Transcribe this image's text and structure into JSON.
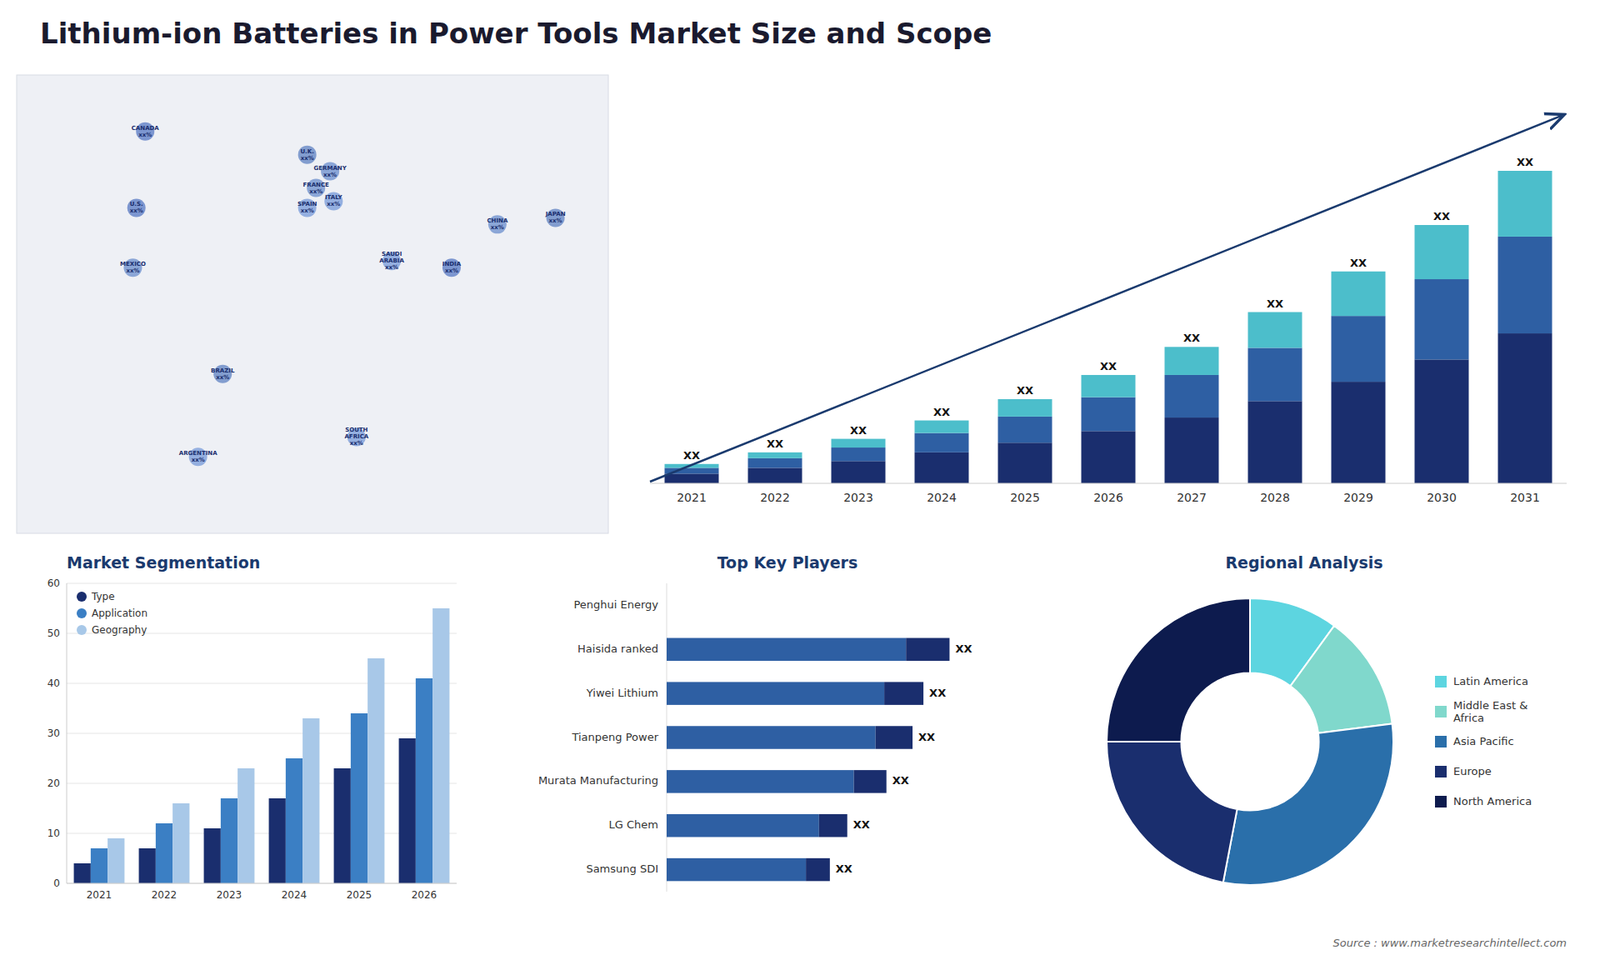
{
  "title": "Lithium-ion Batteries in Power Tools Market Size and Scope",
  "source": "Source : www.marketresearchintellect.com",
  "chart_data": [
    {
      "type": "map",
      "xlim": [
        -168,
        168
      ],
      "ylim": [
        -58,
        80
      ],
      "tick_labels": false,
      "labels": [
        "CANADA\nxx%",
        "U.S.\nxx%",
        "MEXICO\nxx%",
        "BRAZIL\nxx%",
        "ARGENTINA\nxx%",
        "U.K.\nxx%",
        "FRANCE\nxx%",
        "SPAIN\nxx%",
        "GERMANY\nxx%",
        "ITALY\nxx%",
        "SAUDI\nARABIA\nxx%",
        "SOUTH\nAFRICA\nxx%",
        "CHINA\nxx%",
        "JAPAN\nxx%",
        "INDIA\nxx%"
      ],
      "x": [
        -95,
        -100,
        -102,
        -51,
        -65,
        -3,
        2,
        -3,
        10,
        12,
        45,
        25,
        105,
        138,
        79
      ],
      "y": [
        63,
        40,
        22,
        -10,
        -35,
        56,
        46,
        40,
        51,
        42,
        24,
        -29,
        35,
        37,
        22
      ],
      "colors": [
        "#1f4db0",
        "#1f4db0",
        "#3a6abe",
        "#2a5aae",
        "#4a7ace",
        "#2a5aae",
        "#3a6abe",
        "#4a7ace",
        "#3a6abe",
        "#4a7ace",
        "#4a7ace",
        "#4a7ace",
        "#3a6abe",
        "#2a5aae",
        "#1f4db0"
      ]
    },
    {
      "type": "bar",
      "stacked": true,
      "categories": [
        "2021",
        "2022",
        "2023",
        "2024",
        "2025",
        "2026",
        "2027",
        "2028",
        "2029",
        "2030",
        "2031"
      ],
      "series": [
        {
          "color": "#1a2e6e",
          "values": [
            1.0,
            1.6,
            2.3,
            3.2,
            4.2,
            5.4,
            6.8,
            8.5,
            10.5,
            12.8,
            15.5
          ]
        },
        {
          "color": "#2e5fa3",
          "values": [
            0.6,
            1.0,
            1.4,
            2.0,
            2.7,
            3.5,
            4.4,
            5.5,
            6.8,
            8.3,
            10.0
          ]
        },
        {
          "color": "#4cbecb",
          "values": [
            0.4,
            0.6,
            0.9,
            1.3,
            1.8,
            2.3,
            2.9,
            3.7,
            4.6,
            5.6,
            6.8
          ]
        }
      ],
      "ylim": [
        0,
        41.344
      ],
      "tick_labels": "x",
      "annotations": [
        "XX",
        "XX",
        "XX",
        "XX",
        "XX",
        "XX",
        "XX",
        "XX",
        "XX",
        "XX",
        "XX"
      ]
    },
    {
      "type": "bar",
      "title": "Market Segmentation",
      "categories": [
        "2021",
        "2022",
        "2023",
        "2024",
        "2025",
        "2026"
      ],
      "series": [
        {
          "name": "Type",
          "color": "#1a2e6e",
          "values": [
            4,
            7,
            11,
            17,
            23,
            29
          ]
        },
        {
          "name": "Application",
          "color": "#3b7fc4",
          "values": [
            7,
            12,
            17,
            25,
            34,
            41
          ]
        },
        {
          "name": "Geography",
          "color": "#a8c8e8",
          "values": [
            9,
            16,
            23,
            33,
            45,
            55
          ]
        }
      ],
      "ylim": [
        0,
        60
      ],
      "yticks": [
        0,
        10,
        20,
        30,
        40,
        50,
        60
      ],
      "grid": true,
      "legend": "upper left"
    },
    {
      "type": "bar",
      "title": "Top Key Players",
      "orientation": "horizontal",
      "stacked": true,
      "categories": [
        "Penghui Energy",
        "Haisida ranked",
        "Yiwei Lithium",
        "Tianpeng Power",
        "Murata Manufacturing",
        "LG Chem",
        "Samsung SDI"
      ],
      "series": [
        {
          "color": "#2e5fa3",
          "values": [
            0.0,
            5.5,
            5.0,
            4.8,
            4.3,
            3.5,
            3.2
          ]
        },
        {
          "color": "#1a2e6e",
          "values": [
            0.0,
            1.0,
            0.9,
            0.85,
            0.75,
            0.65,
            0.55
          ]
        }
      ],
      "xlim": [
        0,
        9.0
      ],
      "tick_labels": "y",
      "annotations": [
        null,
        "XX",
        "XX",
        "XX",
        "XX",
        "XX",
        "XX"
      ]
    },
    {
      "type": "pie",
      "title": "Regional Analysis",
      "categories": [
        "Latin America",
        "Middle East &\nAfrica",
        "Asia Pacific",
        "Europe",
        "North America"
      ],
      "values": [
        0.1,
        0.13,
        0.3,
        0.22,
        0.25
      ],
      "colors": [
        "#5dd5e0",
        "#80d8cc",
        "#2a6faa",
        "#1a2e6e",
        "#0d1b4e"
      ],
      "legend": "right"
    }
  ]
}
